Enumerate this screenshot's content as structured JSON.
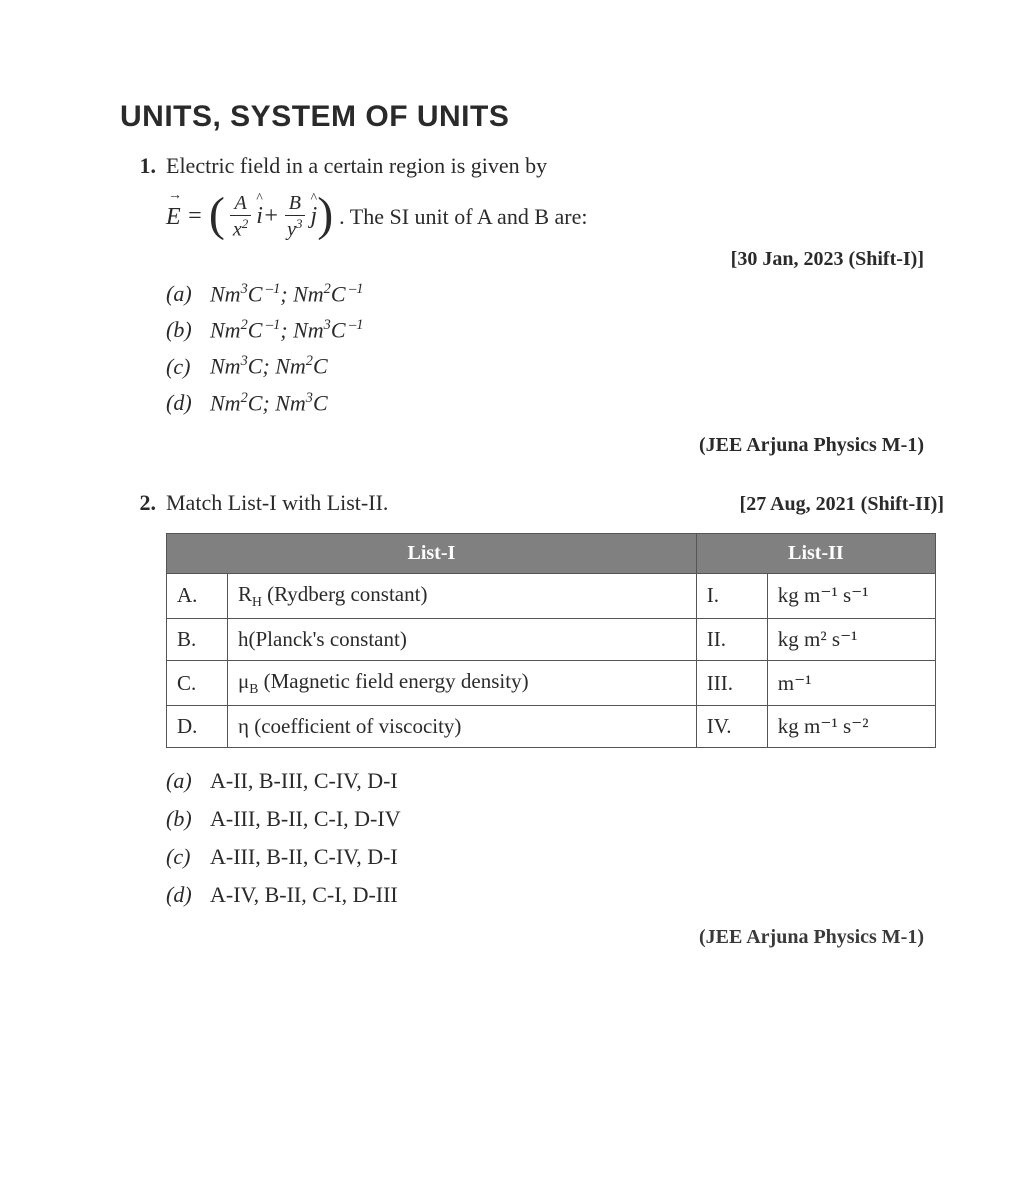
{
  "section_title": "UNITS, SYSTEM OF UNITS",
  "q1": {
    "number": "1.",
    "stem": "Electric field in a certain region is given by",
    "after_eq": ". The SI unit of A and B are:",
    "source": "[30 Jan, 2023 (Shift-I)]",
    "opts": {
      "a_label": "(a)",
      "b_label": "(b)",
      "c_label": "(c)",
      "d_label": "(d)"
    },
    "book_ref": "(JEE Arjuna Physics M-1)"
  },
  "q2": {
    "number": "2.",
    "stem": "Match List-I with List-II.",
    "source": "[27 Aug, 2021 (Shift-II)]",
    "headers": {
      "l1": "List-I",
      "l2": "List-II"
    },
    "rows": [
      {
        "lbl": "A.",
        "desc_pre": "R",
        "desc_sub": "H",
        "desc_post": " (Rydberg constant)",
        "rom": "I.",
        "unit_html": "kg m⁻¹ s⁻¹"
      },
      {
        "lbl": "B.",
        "desc_plain": "h(Planck's constant)",
        "rom": "II.",
        "unit_html": "kg m² s⁻¹"
      },
      {
        "lbl": "C.",
        "desc_pre": "μ",
        "desc_sub": "B",
        "desc_post": " (Magnetic field energy density)",
        "rom": "III.",
        "unit_html": "m⁻¹"
      },
      {
        "lbl": "D.",
        "desc_plain": "η (coefficient of viscocity)",
        "rom": "IV.",
        "unit_html": "kg m⁻¹ s⁻²"
      }
    ],
    "opts": {
      "a": {
        "label": "(a)",
        "text": "A-II, B-III, C-IV, D-I"
      },
      "b": {
        "label": "(b)",
        "text": "A-III, B-II, C-I, D-IV"
      },
      "c": {
        "label": "(c)",
        "text": "A-III, B-II, C-IV, D-I"
      },
      "d": {
        "label": "(d)",
        "text": "A-IV, B-II, C-I, D-III"
      }
    },
    "book_ref": "(JEE Arjuna Physics M-1)"
  },
  "colors": {
    "text": "#2a2a2a",
    "table_header_bg": "#808080",
    "table_header_fg": "#ffffff",
    "table_border": "#555555"
  },
  "typography": {
    "title_fontsize_pt": 22,
    "body_fontsize_pt": 16,
    "option_fontsize_pt": 16
  }
}
